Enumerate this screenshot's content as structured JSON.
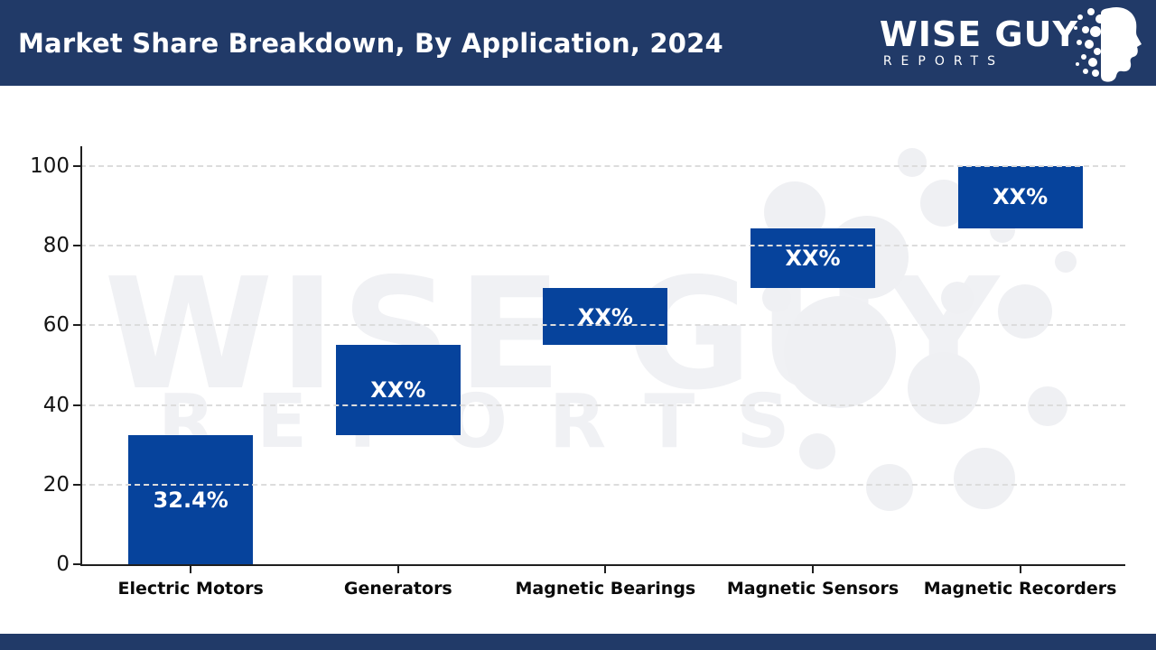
{
  "header": {
    "title": "Market Share Breakdown, By Application, 2024",
    "logo": {
      "line1": "WISE GUY",
      "line2": "REPORTS",
      "head_icon": "dotted-head-profile"
    },
    "background_color": "#213a68"
  },
  "watermark": {
    "line1": "WISE GUY",
    "line2": "REPORTS"
  },
  "footer": {
    "background_color": "#213a68"
  },
  "chart_data": {
    "type": "bar",
    "subtype": "waterfall",
    "title": "Market Share Breakdown, By Application, 2024",
    "categories": [
      "Electric Motors",
      "Generators",
      "Magnetic Bearings",
      "Magnetic Sensors",
      "Magnetic Recorders"
    ],
    "segments": [
      {
        "category": "Electric Motors",
        "start": 0,
        "end": 32.4,
        "label": "32.4%"
      },
      {
        "category": "Generators",
        "start": 32.4,
        "end": 55,
        "label": "XX%"
      },
      {
        "category": "Magnetic Bearings",
        "start": 55,
        "end": 69.4,
        "label": "XX%"
      },
      {
        "category": "Magnetic Sensors",
        "start": 69.4,
        "end": 84.4,
        "label": "XX%"
      },
      {
        "category": "Magnetic Recorders",
        "start": 84.4,
        "end": 100,
        "label": "XX%"
      }
    ],
    "yticks": [
      0,
      20,
      40,
      60,
      80,
      100
    ],
    "ylim": [
      0,
      105
    ],
    "xlabel": "",
    "ylabel": "",
    "grid": "horizontal-dashed",
    "legend": "none",
    "bar_color": "#06439c",
    "bar_label_color": "#ffffff",
    "axis_color": "#1f1f1f",
    "grid_color": "#dcdcdc"
  }
}
